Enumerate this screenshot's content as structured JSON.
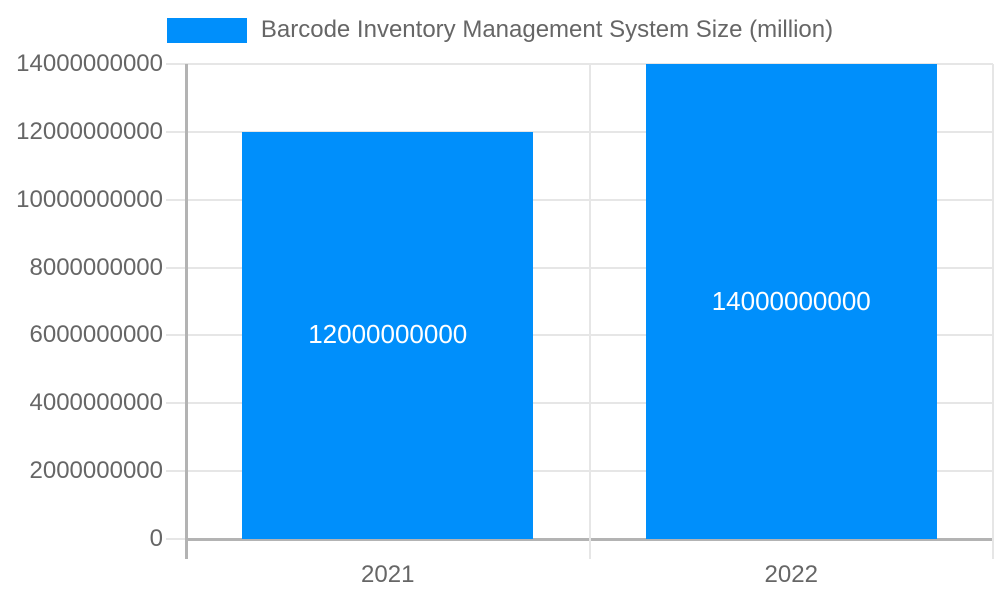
{
  "chart_data": {
    "type": "bar",
    "legend": {
      "label": "Barcode Inventory Management System Size (million)",
      "position": "top"
    },
    "categories": [
      "2021",
      "2022"
    ],
    "series": [
      {
        "name": "Barcode Inventory Management System Size (million)",
        "values": [
          12000000000,
          14000000000
        ],
        "data_labels": [
          "12000000000",
          "14000000000"
        ],
        "color": "#008ffb"
      }
    ],
    "xlabel": "",
    "ylabel": "",
    "ylim": [
      0,
      14000000000
    ],
    "y_ticks": [
      {
        "value": 0,
        "label": "0"
      },
      {
        "value": 2000000000,
        "label": "2000000000"
      },
      {
        "value": 4000000000,
        "label": "4000000000"
      },
      {
        "value": 6000000000,
        "label": "6000000000"
      },
      {
        "value": 8000000000,
        "label": "8000000000"
      },
      {
        "value": 10000000000,
        "label": "10000000000"
      },
      {
        "value": 12000000000,
        "label": "12000000000"
      },
      {
        "value": 14000000000,
        "label": "14000000000"
      }
    ],
    "grid": true,
    "colors": {
      "bar": "#008ffb",
      "grid_light": "#e6e6e6",
      "grid_dark": "#b3b3b3",
      "tick_text": "#666666",
      "data_label_text": "#ffffff",
      "background": "#ffffff"
    }
  }
}
